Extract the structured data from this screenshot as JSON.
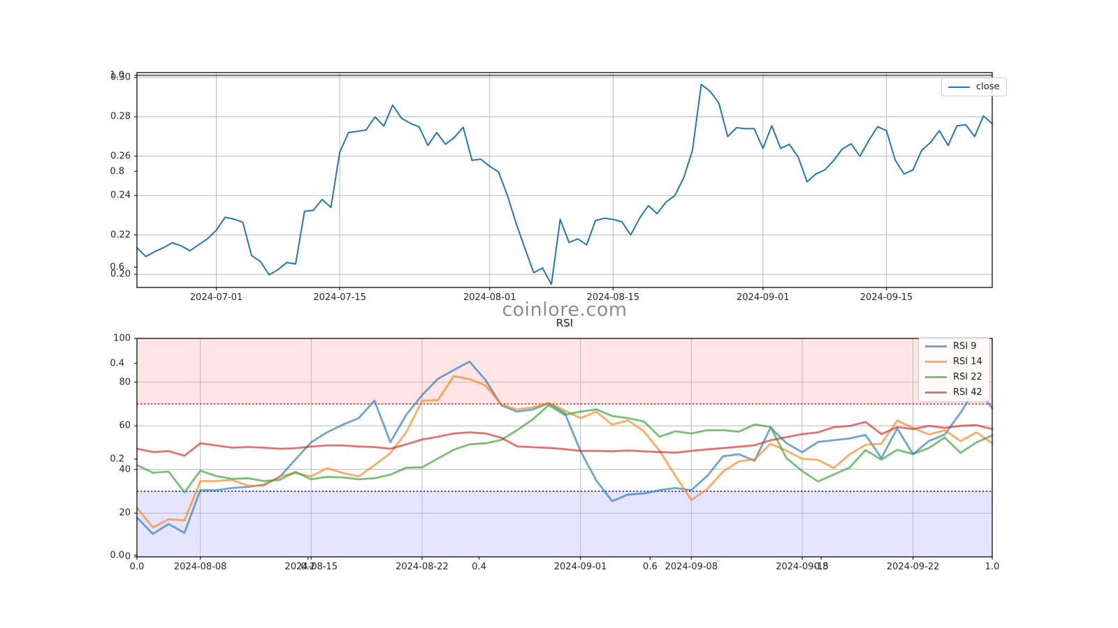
{
  "watermark_text": "coinlore.com",
  "overlay_axis": {
    "left_labels": [
      "1.0",
      "0.8",
      "0.6",
      "0.4",
      "0.2",
      "0.0"
    ],
    "bottom_labels": [
      "0.0",
      "0.2",
      "0.4",
      "0.6",
      "0.8",
      "1.0"
    ]
  },
  "chart_data": [
    {
      "id": "price",
      "type": "line",
      "title": "",
      "start_date": "2024-06-22",
      "end_date": "2024-09-27",
      "frequency": "daily",
      "grid": true,
      "ylim": [
        0.1933,
        0.3025
      ],
      "y_ticks": [
        {
          "value": 0.2,
          "label": "0.20"
        },
        {
          "value": 0.22,
          "label": "0.22"
        },
        {
          "value": 0.24,
          "label": "0.24"
        },
        {
          "value": 0.26,
          "label": "0.26"
        },
        {
          "value": 0.28,
          "label": "0.28"
        },
        {
          "value": 0.3,
          "label": "0.30"
        }
      ],
      "x_ticks": [
        {
          "index": 9,
          "label": "2024-07-01"
        },
        {
          "index": 23,
          "label": "2024-07-15"
        },
        {
          "index": 40,
          "label": "2024-08-01"
        },
        {
          "index": 54,
          "label": "2024-08-15"
        },
        {
          "index": 71,
          "label": "2024-09-01"
        },
        {
          "index": 85,
          "label": "2024-09-15"
        }
      ],
      "legend": {
        "position": "upper right",
        "entries": [
          {
            "label": "close",
            "color": "#1f77b4",
            "width": 2
          }
        ]
      },
      "series": [
        {
          "name": "close",
          "color": "#1f77b4",
          "stroke_width": 2,
          "values": [
            0.2135,
            0.209,
            0.2115,
            0.2135,
            0.216,
            0.2145,
            0.212,
            0.215,
            0.218,
            0.2224,
            0.229,
            0.228,
            0.2265,
            0.2095,
            0.2065,
            0.1997,
            0.2024,
            0.206,
            0.2053,
            0.232,
            0.2325,
            0.238,
            0.234,
            0.262,
            0.272,
            0.2726,
            0.2734,
            0.28,
            0.2753,
            0.286,
            0.2793,
            0.2767,
            0.2749,
            0.2655,
            0.272,
            0.2661,
            0.2696,
            0.2747,
            0.2579,
            0.2585,
            0.2549,
            0.252,
            0.2402,
            0.226,
            0.2132,
            0.2008,
            0.2032,
            0.1949,
            0.2279,
            0.2162,
            0.218,
            0.215,
            0.2273,
            0.2285,
            0.2279,
            0.2267,
            0.22,
            0.2285,
            0.2349,
            0.2308,
            0.2367,
            0.24,
            0.249,
            0.263,
            0.2965,
            0.293,
            0.287,
            0.27,
            0.2745,
            0.274,
            0.274,
            0.264,
            0.2755,
            0.264,
            0.266,
            0.2595,
            0.247,
            0.251,
            0.253,
            0.2577,
            0.2637,
            0.2663,
            0.26,
            0.268,
            0.275,
            0.273,
            0.258,
            0.251,
            0.253,
            0.263,
            0.267,
            0.273,
            0.2655,
            0.2755,
            0.276,
            0.27,
            0.2805,
            0.2765
          ]
        }
      ]
    },
    {
      "id": "rsi",
      "type": "line",
      "title": "RSI",
      "start_date": "2024-08-04",
      "end_date": "2024-09-27",
      "frequency": "daily",
      "grid": true,
      "ylim": [
        0,
        100
      ],
      "overbought_level": 70,
      "oversold_level": 30,
      "bands": [
        {
          "from": 70,
          "to": 100,
          "color": "rgba(255,0,0,0.10)"
        },
        {
          "from": 0,
          "to": 30,
          "color": "rgba(0,0,255,0.10)"
        }
      ],
      "hlines": [
        {
          "value": 70,
          "color": "#e01020",
          "style": "dotted"
        },
        {
          "value": 30,
          "color": "#1414c8",
          "style": "dotted"
        }
      ],
      "y_ticks": [
        {
          "value": 0,
          "label": "0"
        },
        {
          "value": 20,
          "label": "20"
        },
        {
          "value": 40,
          "label": "40"
        },
        {
          "value": 60,
          "label": "60"
        },
        {
          "value": 80,
          "label": "80"
        },
        {
          "value": 100,
          "label": "100"
        }
      ],
      "x_ticks": [
        {
          "index": 4,
          "label": "2024-08-08"
        },
        {
          "index": 11,
          "label": "2024-08-15"
        },
        {
          "index": 18,
          "label": "2024-08-22"
        },
        {
          "index": 28,
          "label": "2024-09-01"
        },
        {
          "index": 35,
          "label": "2024-09-08"
        },
        {
          "index": 42,
          "label": "2024-09-15"
        },
        {
          "index": 49,
          "label": "2024-09-22"
        }
      ],
      "legend": {
        "position": "upper right",
        "entries": [
          {
            "label": "RSI 9",
            "color": "rgba(31,119,180,0.65)",
            "width": 3
          },
          {
            "label": "RSI 14",
            "color": "rgba(255,127,14,0.65)",
            "width": 3
          },
          {
            "label": "RSI 22",
            "color": "rgba(44,160,44,0.65)",
            "width": 3
          },
          {
            "label": "RSI 42",
            "color": "rgba(214,39,40,0.65)",
            "width": 3
          }
        ]
      },
      "series": [
        {
          "name": "RSI 9",
          "color": "rgba(31,119,180,0.65)",
          "stroke_width": 2.8,
          "values": [
            18,
            10.5,
            15,
            11,
            30.5,
            30.5,
            31.5,
            32,
            33,
            36.5,
            44.5,
            52.5,
            57,
            60.5,
            63.5,
            71.5,
            52.5,
            65,
            74,
            81.5,
            85.5,
            89.4,
            81,
            69.4,
            66.5,
            67.5,
            70.3,
            66,
            48.5,
            35,
            25.5,
            28.5,
            29,
            30.5,
            31.5,
            30.5,
            37,
            46,
            47,
            44,
            59.2,
            52.1,
            47.9,
            52.6,
            53.4,
            54.2,
            55.8,
            45.2,
            58.8,
            47,
            53,
            56,
            66,
            77.4,
            68
          ]
        },
        {
          "name": "RSI 14",
          "color": "rgba(255,127,14,0.65)",
          "stroke_width": 2.8,
          "values": [
            22.5,
            13.5,
            17.2,
            16.7,
            34.7,
            34.7,
            35.2,
            32.6,
            32.6,
            36.8,
            38.4,
            36.8,
            40.6,
            38.4,
            36.8,
            42,
            47.5,
            57,
            71.5,
            71.8,
            82.7,
            81.4,
            78.5,
            69.8,
            67.5,
            68.5,
            70.5,
            67,
            63.5,
            66.5,
            60.5,
            62.5,
            57.5,
            48.5,
            37,
            26,
            31,
            39,
            43.7,
            44.7,
            51.8,
            48.6,
            44.9,
            44.4,
            40.7,
            47,
            51.3,
            51.8,
            62.4,
            59,
            56,
            58,
            53,
            57,
            52
          ]
        },
        {
          "name": "RSI 22",
          "color": "rgba(44,160,44,0.65)",
          "stroke_width": 2.8,
          "values": [
            42,
            38.5,
            39,
            29.5,
            39.5,
            37,
            35.7,
            36,
            34.7,
            35.2,
            38.9,
            35.5,
            36.6,
            36.4,
            35.5,
            36,
            37.6,
            40.8,
            41,
            45,
            49,
            51.5,
            52,
            53.5,
            58,
            63,
            69.5,
            65,
            66.5,
            67.5,
            64.5,
            63.5,
            62,
            55,
            57.5,
            56.5,
            58,
            58,
            57.3,
            60.6,
            59.5,
            45.2,
            39.3,
            34.5,
            37.7,
            40.9,
            48.9,
            44.5,
            49,
            47.1,
            49.8,
            54.6,
            47.6,
            52.4,
            55.6
          ]
        },
        {
          "name": "RSI 42",
          "color": "rgba(214,39,40,0.65)",
          "stroke_width": 2.8,
          "values": [
            49.5,
            48,
            48.4,
            46.3,
            52,
            51,
            50,
            50.3,
            50,
            49.5,
            49.7,
            50.5,
            51,
            51,
            50.5,
            50.3,
            49.5,
            51.5,
            53.7,
            55,
            56.5,
            57,
            56.5,
            54.5,
            50.6,
            50.2,
            49.9,
            49.3,
            48.5,
            48.5,
            48.3,
            48.7,
            48.3,
            48,
            47.7,
            48.5,
            49.2,
            49.8,
            50.4,
            51.1,
            53.4,
            54.8,
            56.2,
            57,
            59.4,
            59.9,
            61.8,
            56.2,
            59.4,
            58.5,
            60,
            59,
            60,
            60.3,
            58.5
          ]
        }
      ]
    }
  ]
}
